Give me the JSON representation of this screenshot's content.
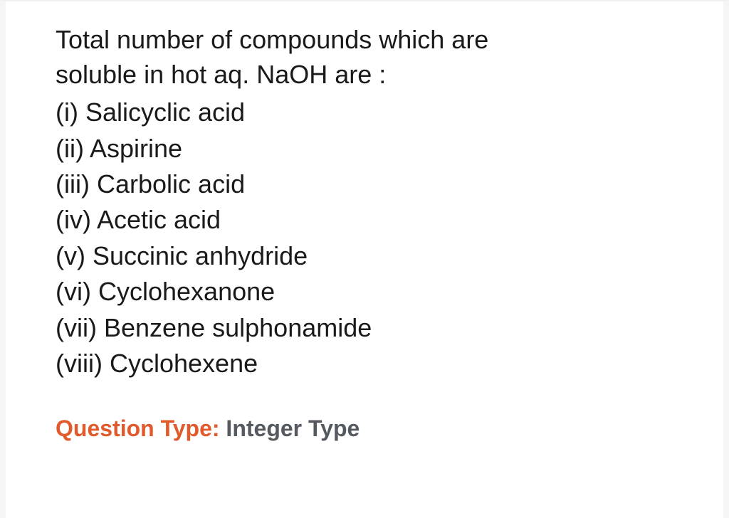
{
  "question": {
    "stem_line1": "Total number of compounds which are",
    "stem_line2": "soluble in hot aq. NaOH are :",
    "options": [
      {
        "marker": "(i)",
        "text": "Salicyclic acid"
      },
      {
        "marker": "(ii)",
        "text": "Aspirine"
      },
      {
        "marker": "(iii)",
        "text": "Carbolic acid"
      },
      {
        "marker": "(iv)",
        "text": "Acetic acid"
      },
      {
        "marker": "(v)",
        "text": "Succinic anhydride"
      },
      {
        "marker": "(vi)",
        "text": "Cyclohexanone"
      },
      {
        "marker": "(vii)",
        "text": "Benzene sulphonamide"
      },
      {
        "marker": "(viii)",
        "text": "Cyclohexene"
      }
    ]
  },
  "footer": {
    "label": "Question Type: ",
    "value": "Integer Type"
  },
  "style": {
    "text_color": "#1a1a1a",
    "footer_label_color": "#e05a2b",
    "footer_value_color": "#555a60",
    "background_color": "#ffffff",
    "stem_fontsize": 36,
    "option_fontsize": 36,
    "footer_fontsize": 32
  }
}
